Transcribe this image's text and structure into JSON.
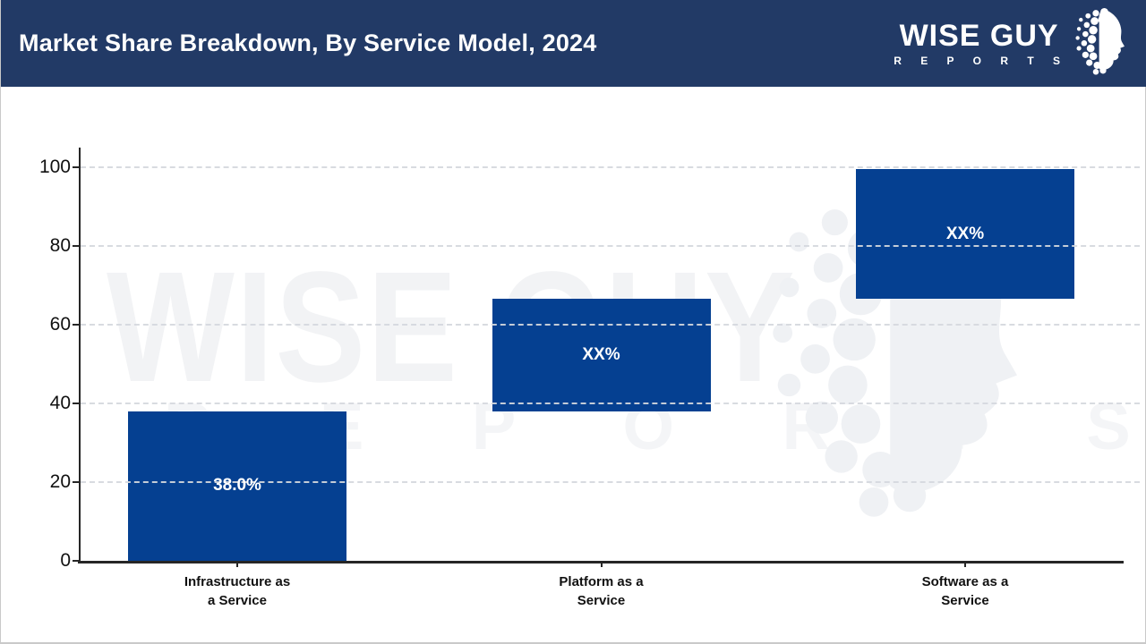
{
  "header": {
    "title": "Market Share Breakdown, By Service Model, 2024",
    "bg_color": "#223a66",
    "logo": {
      "line1": "WISE GUY",
      "line2": "R E P O R T S"
    }
  },
  "watermark": {
    "line1": "WISE GUY",
    "line2": "R E P O R T S"
  },
  "chart_data": {
    "type": "bar",
    "subtype": "waterfall-stacked-segments",
    "title": "Market Share Breakdown, By Service Model, 2024",
    "categories": [
      "Infrastructure as\na Service",
      "Platform as a\nService",
      "Software as a\nService"
    ],
    "bars": [
      {
        "label_lines": [
          "Infrastructure as",
          "a Service"
        ],
        "start": 0,
        "end": 38,
        "value_label": "38.0%"
      },
      {
        "label_lines": [
          "Platform as a",
          "Service"
        ],
        "start": 38,
        "end": 66.5,
        "value_label": "XX%"
      },
      {
        "label_lines": [
          "Software as a",
          "Service"
        ],
        "start": 66.5,
        "end": 99.5,
        "value_label": "XX%"
      }
    ],
    "bar_color": "#054091",
    "value_label_color": "#ffffff",
    "yticks": [
      0,
      20,
      40,
      60,
      80,
      100
    ],
    "ylim": [
      0,
      105
    ],
    "xlabel": "",
    "ylabel": "",
    "grid": "horizontal-dashed-over-bars",
    "gridline_color": "#d9d9d9",
    "legend": "none"
  }
}
